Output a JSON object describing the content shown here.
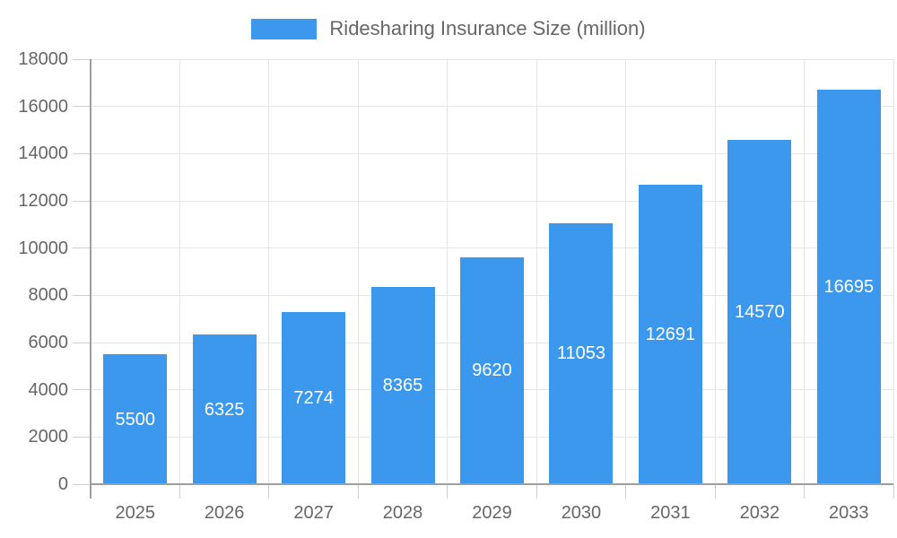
{
  "legend": {
    "label": "Ridesharing Insurance Size (million)"
  },
  "chart_data": {
    "type": "bar",
    "title": "Ridesharing Insurance Size (million)",
    "categories": [
      "2025",
      "2026",
      "2027",
      "2028",
      "2029",
      "2030",
      "2031",
      "2032",
      "2033"
    ],
    "values": [
      5500,
      6325,
      7274,
      8365,
      9620,
      11053,
      12691,
      14570,
      16695
    ],
    "series_name": "Ridesharing Insurance Size (million)",
    "xlabel": "",
    "ylabel": "",
    "ylim": [
      0,
      18000
    ],
    "ytick_step": 2000,
    "ytick_labels": [
      "0",
      "2000",
      "4000",
      "6000",
      "8000",
      "10000",
      "12000",
      "14000",
      "16000",
      "18000"
    ],
    "grid": true,
    "legend_position": "top",
    "value_labels": "centered-inside-white",
    "style": {
      "bar_color": "#3B98EC",
      "value_label_color": "#FFFFFF",
      "grid_color": "#E6E6E6",
      "axis_color": "#9E9E9E",
      "tick_color": "#CFCFCF",
      "text_color": "#666666",
      "background_color": "#FFFFFF"
    }
  }
}
